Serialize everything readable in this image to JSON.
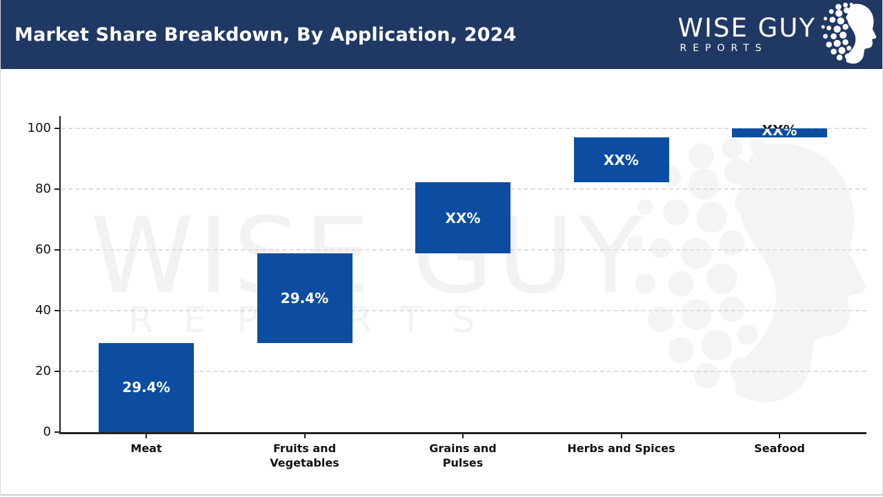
{
  "header": {
    "title": "Market Share Breakdown, By Application, 2024",
    "bg_color": "#203864",
    "logo": {
      "wordmark": "WISE GUY",
      "subtext": "REPORTS"
    }
  },
  "watermark": {
    "wordmark": "WISE GUY",
    "subtext": "REPORTS"
  },
  "chart_data": {
    "type": "bar",
    "variant": "waterfall",
    "title": "Market Share Breakdown, By Application, 2024",
    "xlabel": "",
    "ylabel": "",
    "ylim": [
      0,
      100
    ],
    "yticks": [
      0,
      20,
      40,
      60,
      80,
      100
    ],
    "grid": "horizontal-dashed",
    "grid_color": "#dddddd",
    "bar_color": "#0c4da2",
    "bar_label_color": "#ffffff",
    "categories": [
      "Meat",
      "Fruits and Vegetables",
      "Grains and Pulses",
      "Herbs and Spices",
      "Seafood"
    ],
    "segments": [
      {
        "category": "Meat",
        "start": 0,
        "end": 29.4,
        "value": 29.4,
        "label": "29.4%"
      },
      {
        "category": "Fruits and Vegetables",
        "start": 29.4,
        "end": 58.8,
        "value": 29.4,
        "label": "29.4%"
      },
      {
        "category": "Grains and Pulses",
        "start": 58.8,
        "end": 82.3,
        "value": 23.5,
        "label": "XX%"
      },
      {
        "category": "Herbs and Spices",
        "start": 82.3,
        "end": 97.0,
        "value": 14.7,
        "label": "XX%"
      },
      {
        "category": "Seafood",
        "start": 97.0,
        "end": 100.0,
        "value": 3.0,
        "label": "XX%"
      }
    ]
  }
}
